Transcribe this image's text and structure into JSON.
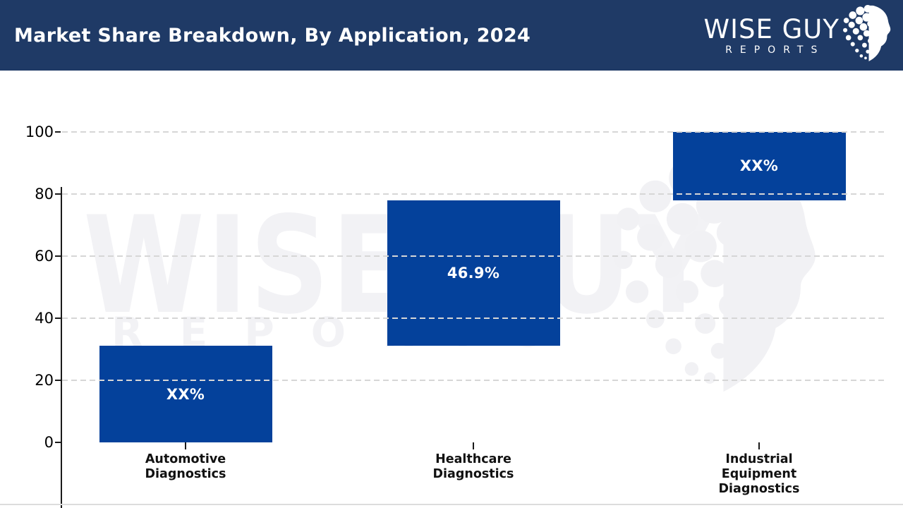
{
  "header": {
    "title": "Market Share Breakdown, By Application, 2024",
    "logo": {
      "name": "WISE GUY",
      "sub": "REPORTS"
    }
  },
  "watermark": {
    "name": "WISE GUY",
    "sub": "REPORTS"
  },
  "colors": {
    "header_bg": "#1f3a66",
    "bar": "#04419b",
    "bar_label": "#ffffff",
    "gridline": "#d6d6d6",
    "axis": "#1a1a1a",
    "watermark": "#f2f2f5"
  },
  "chart_data": {
    "type": "bar",
    "subtype": "floating-segment-breakdown",
    "title": "Market Share Breakdown, By Application, 2024",
    "categories": [
      "Automotive Diagnostics",
      "Healthcare Diagnostics",
      "Industrial Equipment Diagnostics"
    ],
    "segments": [
      {
        "category": "Automotive Diagnostics",
        "start": 0,
        "end": 31.1,
        "label": "XX%"
      },
      {
        "category": "Healthcare Diagnostics",
        "start": 31.1,
        "end": 78.0,
        "label": "46.9%"
      },
      {
        "category": "Industrial Equipment Diagnostics",
        "start": 78.0,
        "end": 100,
        "label": "XX%"
      }
    ],
    "yticks": [
      0,
      20,
      40,
      60,
      80,
      100
    ],
    "ylim": [
      0,
      105
    ],
    "xlabel": "",
    "ylabel": "",
    "grid": "horizontal-dashed",
    "legend": "none",
    "bar_color": "#04419b",
    "value_label_color": "#ffffff"
  }
}
